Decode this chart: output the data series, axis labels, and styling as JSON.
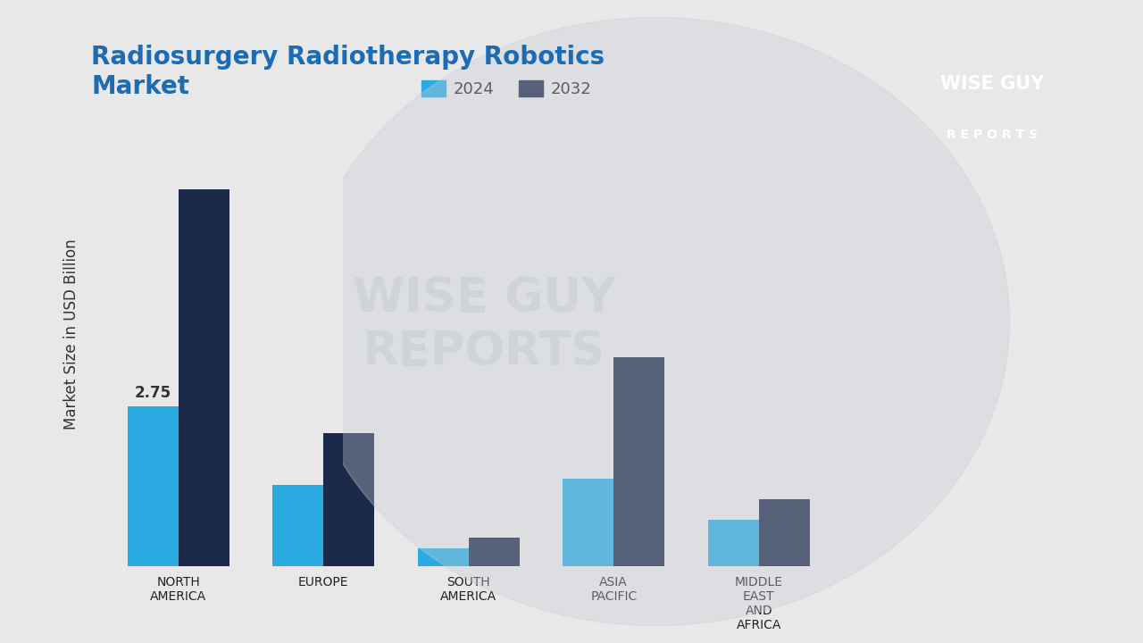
{
  "title": "Radiosurgery Radiotherapy Robotics\nMarket",
  "ylabel": "Market Size in USD Billion",
  "categories": [
    "NORTH\nAMERICA",
    "EUROPE",
    "SOUTH\nAMERICA",
    "ASIA\nPACIFIC",
    "MIDDLE\nEAST\nAND\nAFRICA"
  ],
  "values_2024": [
    2.75,
    1.4,
    0.3,
    1.5,
    0.8
  ],
  "values_2032": [
    6.5,
    2.3,
    0.48,
    3.6,
    1.15
  ],
  "bar_color_2024": "#29ABE2",
  "bar_color_2032": "#1B2A4A",
  "annotation_label": "2.75",
  "annotation_index": 0,
  "background_color": "#E8E8E8",
  "title_color": "#1B6CB5",
  "ylabel_color": "#333333",
  "legend_labels": [
    "2024",
    "2032"
  ],
  "bar_width": 0.35,
  "right_panel_color": "#1B2A4A",
  "ylim": [
    0,
    8
  ]
}
